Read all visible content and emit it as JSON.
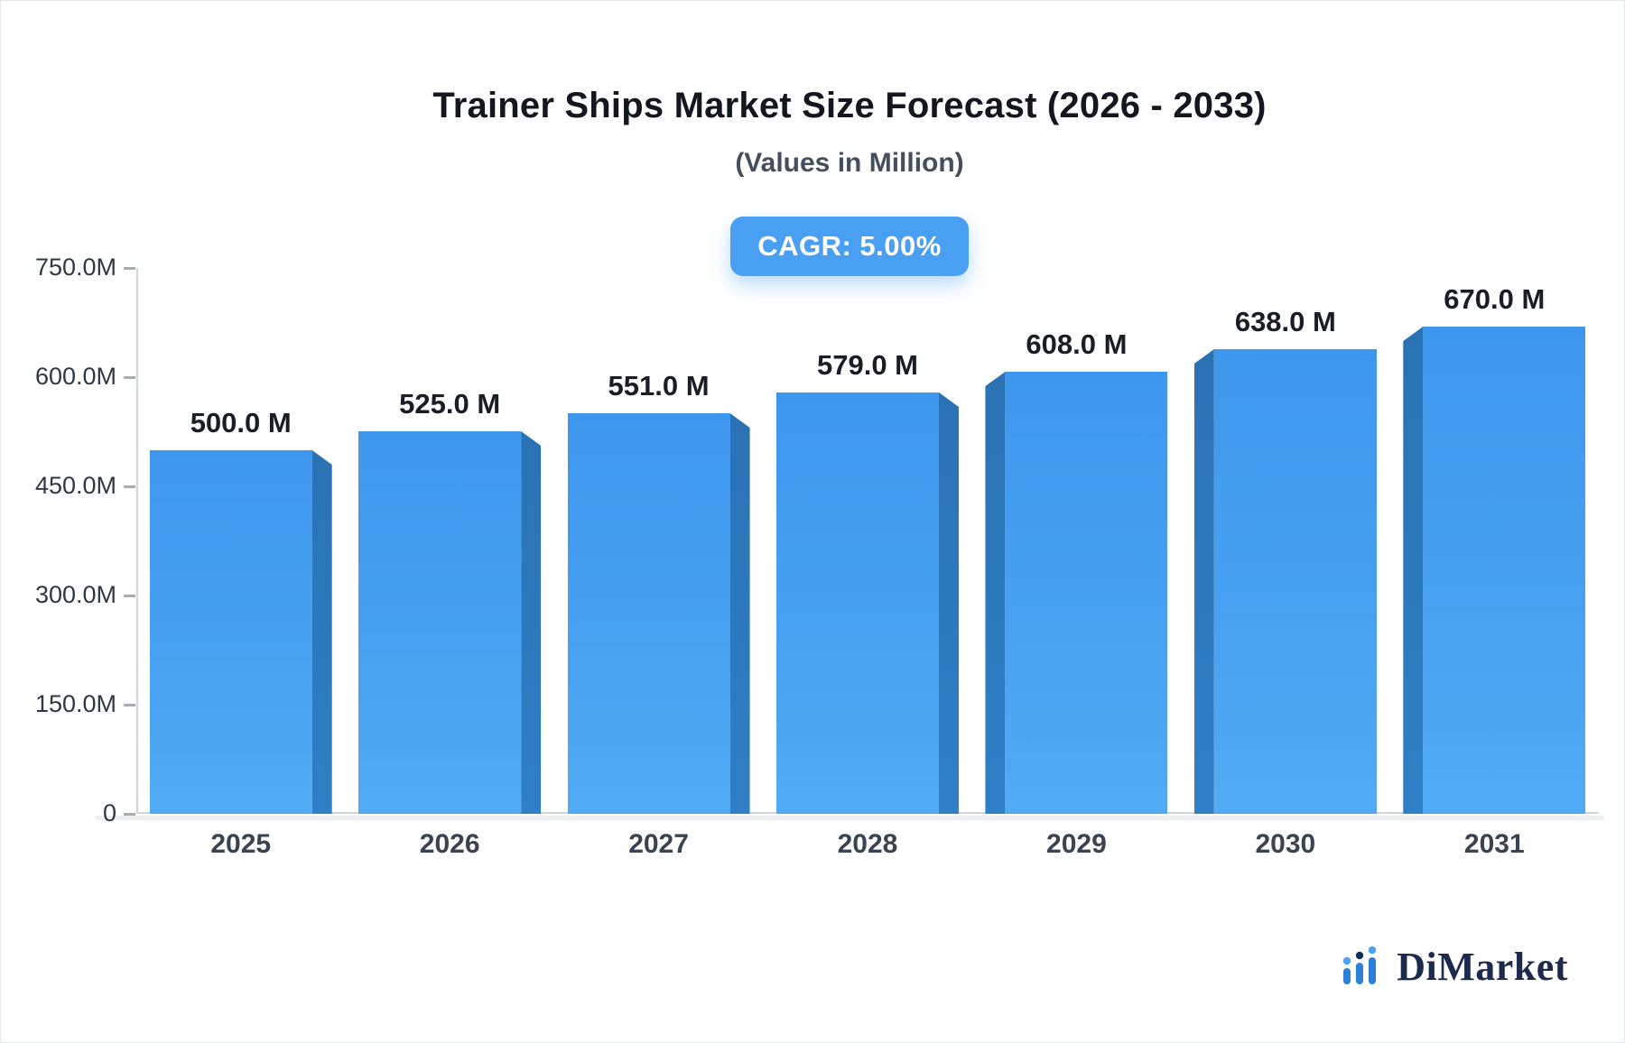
{
  "header": {
    "title": "Trainer Ships Market Size Forecast (2026 - 2033)",
    "subtitle": "(Values in Million)",
    "cagr_label": "CAGR: 5.00%"
  },
  "brand": {
    "name": "DiMarket"
  },
  "colors": {
    "bar_face": "#459ff0",
    "bar_side": "#2d79bd",
    "badge_background": "#49a0f2",
    "badge_text": "#ffffff",
    "axis_line": "#d2d6db",
    "brand_text": "#1c2b4d"
  },
  "chart_data": {
    "type": "bar",
    "title": "Trainer Ships Market Size Forecast (2026 - 2033)",
    "subtitle": "(Values in Million)",
    "cagr": "5.00%",
    "cagr_label": "CAGR: 5.00%",
    "unit": "Million",
    "categories": [
      "2025",
      "2026",
      "2027",
      "2028",
      "2029",
      "2030",
      "2031"
    ],
    "values": [
      500,
      525,
      551,
      579,
      608,
      638,
      670
    ],
    "value_labels": [
      "500.0 M",
      "525.0 M",
      "551.0 M",
      "579.0 M",
      "608.0 M",
      "638.0 M",
      "670.0 M"
    ],
    "xlabel": "",
    "ylabel": "",
    "ylim": [
      0,
      750
    ],
    "yticks": [
      {
        "value": 750,
        "label": "750.0M"
      },
      {
        "value": 600,
        "label": "600.0M"
      },
      {
        "value": 450,
        "label": "450.0M"
      },
      {
        "value": 300,
        "label": "300.0M"
      },
      {
        "value": 150,
        "label": "150.0M"
      },
      {
        "value": 0,
        "label": "0"
      }
    ],
    "grid": false,
    "legend": false
  }
}
